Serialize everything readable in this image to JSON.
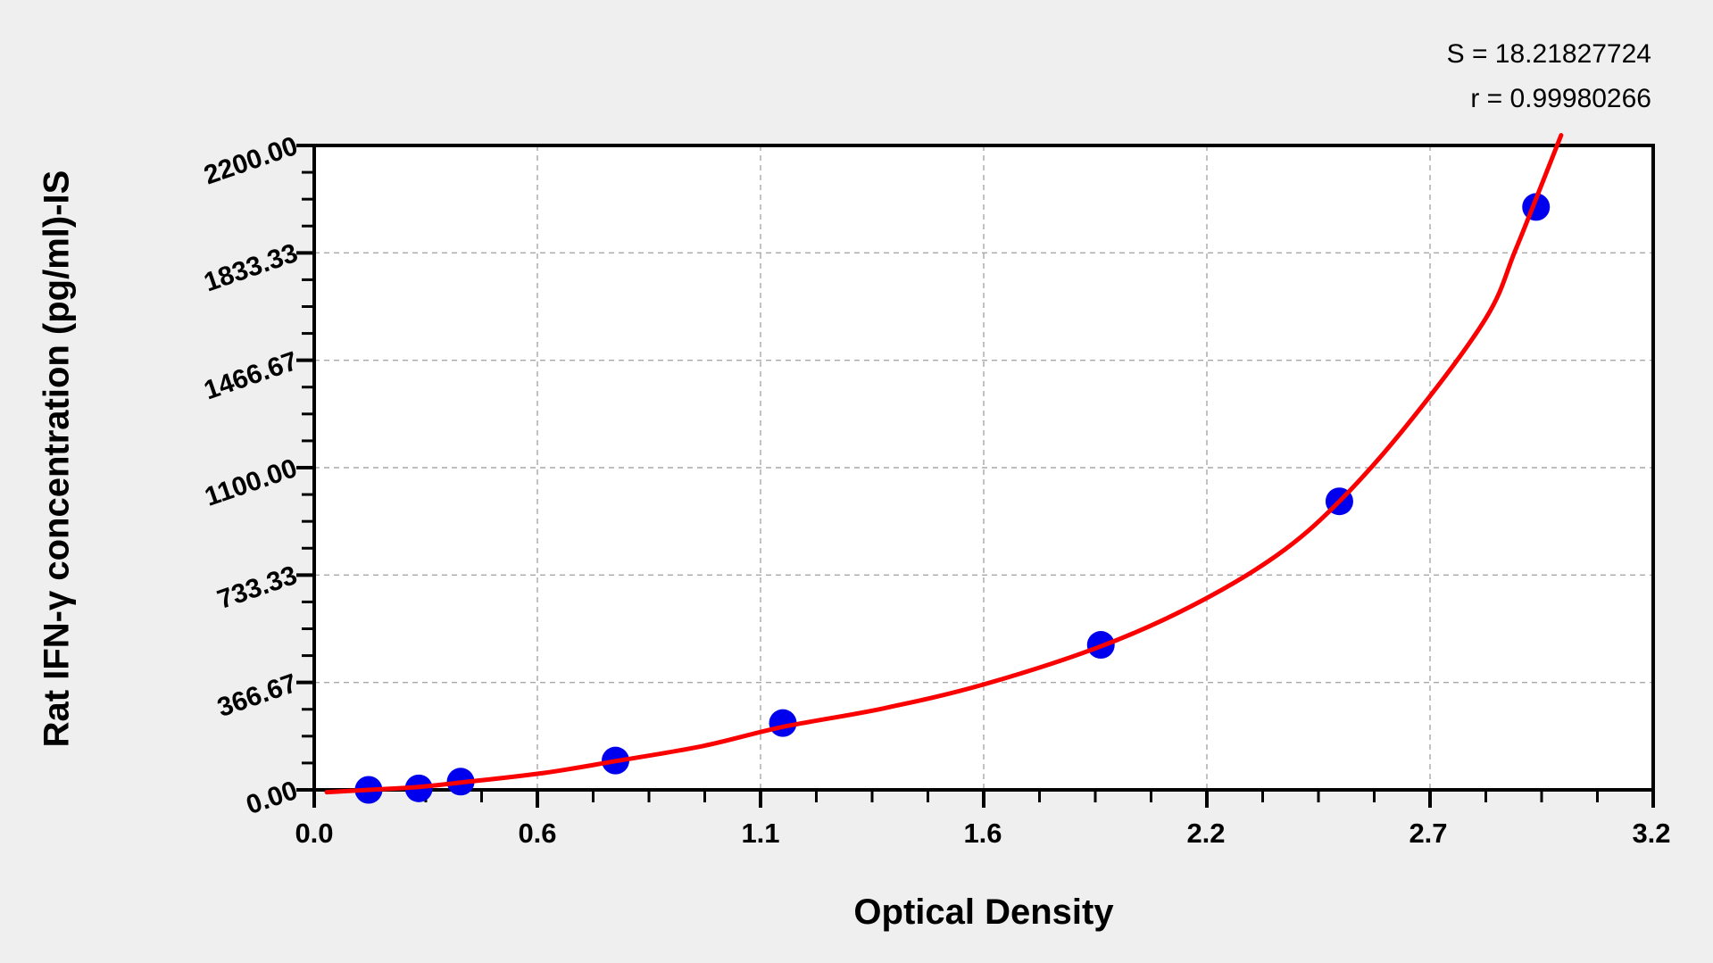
{
  "stats": {
    "s_line": "S = 18.21827724",
    "r_line": "r = 0.99980266",
    "S": 18.21827724,
    "r": 0.99980266
  },
  "chart_data": {
    "type": "scatter",
    "title": "",
    "xlabel": "Optical Density",
    "ylabel": "Rat IFN-γ concentration (pg/ml)-IS",
    "xlim": [
      0,
      3.2
    ],
    "ylim": [
      0,
      2200
    ],
    "x_tick_labels": [
      "0.0",
      "0.6",
      "1.1",
      "1.6",
      "2.2",
      "2.7",
      "3.2"
    ],
    "y_tick_labels": [
      "0.00",
      "366.67",
      "733.33",
      "1100.00",
      "1466.67",
      "1833.33",
      "2200.00"
    ],
    "y_tick_values": [
      0,
      366.67,
      733.33,
      1100.0,
      1466.67,
      1833.33,
      2200.0
    ],
    "minor_divisions_per_major": 4,
    "grid": true,
    "legend": false,
    "points": {
      "name": "standard-points",
      "x": [
        0.13,
        0.25,
        0.35,
        0.72,
        1.12,
        1.88,
        2.45,
        2.92
      ],
      "y": [
        0,
        5,
        28,
        100,
        228,
        495,
        985,
        1990
      ]
    },
    "fit_curve": {
      "name": "fitted-standard-curve",
      "x": [
        0.03,
        0.13,
        0.25,
        0.35,
        0.55,
        0.72,
        0.93,
        1.12,
        1.36,
        1.6,
        1.88,
        2.1,
        2.3,
        2.45,
        2.62,
        2.8,
        2.87,
        2.94,
        2.98
      ],
      "y": [
        -8,
        0,
        10,
        25,
        58,
        98,
        150,
        215,
        278,
        360,
        490,
        630,
        800,
        985,
        1260,
        1610,
        1840,
        2090,
        2235
      ]
    },
    "colors": {
      "point": "#0000ee",
      "curve": "#fa0000",
      "grid": "#a8a8a8",
      "axis": "#000000",
      "plot_background": "#ffffff",
      "page_background": "#efefef"
    }
  }
}
